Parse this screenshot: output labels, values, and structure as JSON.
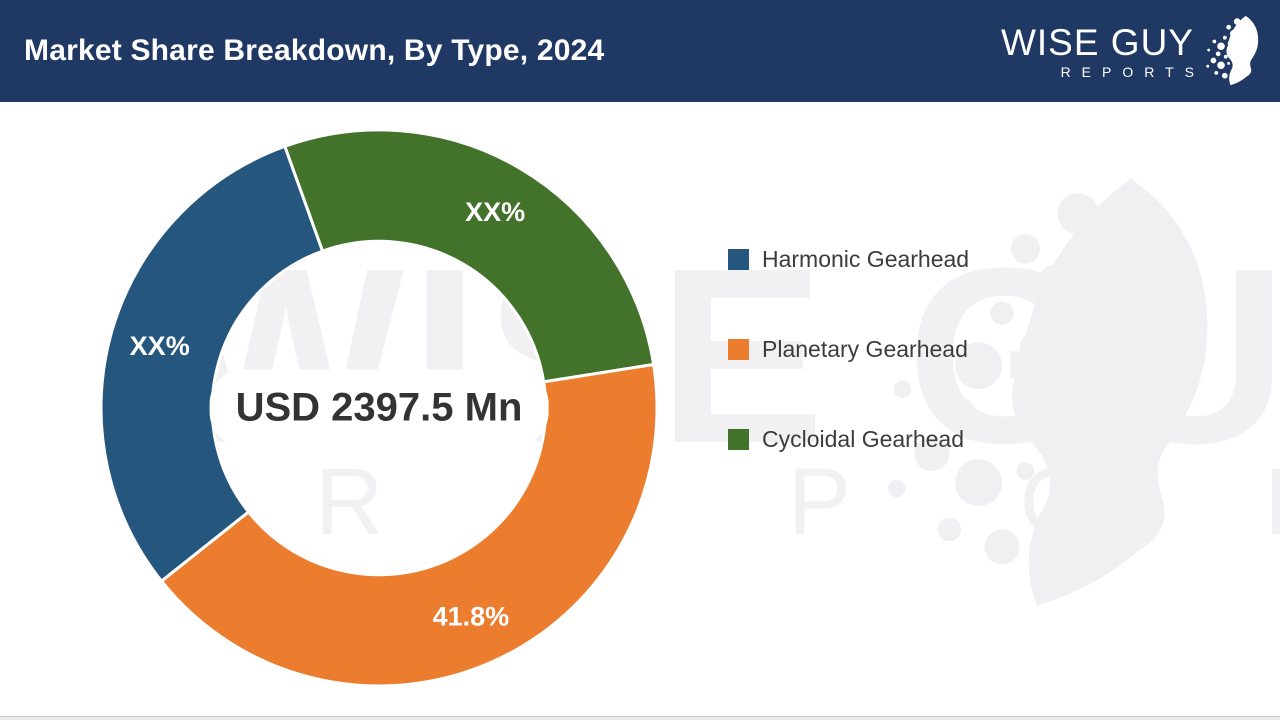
{
  "header": {
    "title": "Market Share Breakdown, By Type, 2024",
    "bg_color": "#1f3864",
    "logo": {
      "line1": "WISE GUY",
      "line2": "REPORTS"
    }
  },
  "chart_data": {
    "type": "pie",
    "subtype": "donut",
    "title": "Market Share Breakdown, By Type, 2024",
    "center_label": "USD 2397.5 Mn",
    "legend_position": "right",
    "start_angle_deg": 109.8,
    "direction": "clockwise",
    "inner_radius_ratio": 0.6,
    "segments": [
      {
        "name": "Cycloidal Gearhead",
        "display_label": "XX%",
        "value_pct_est": 28.0,
        "value_masked": true,
        "color": "#43722a"
      },
      {
        "name": "Planetary Gearhead",
        "display_label": "41.8%",
        "value_pct_est": 41.8,
        "value_masked": false,
        "color": "#ec7d2f"
      },
      {
        "name": "Harmonic Gearhead",
        "display_label": "XX%",
        "value_pct_est": 30.2,
        "value_masked": true,
        "color": "#25567e"
      }
    ],
    "legend": [
      {
        "label": "Harmonic Gearhead",
        "color": "#25567e"
      },
      {
        "label": "Planetary Gearhead",
        "color": "#ec7d2f"
      },
      {
        "label": "Cycloidal Gearhead",
        "color": "#43722a"
      }
    ]
  },
  "watermark": {
    "line1": "WISE GUY",
    "line2": "R E P O R T S"
  }
}
